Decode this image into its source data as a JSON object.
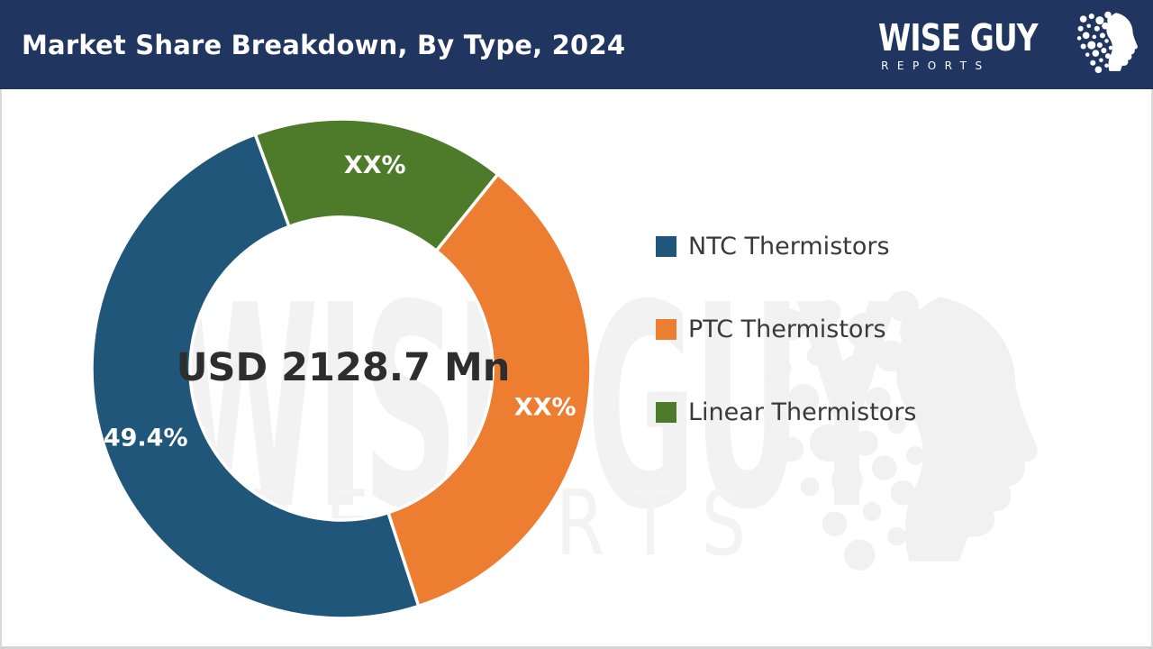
{
  "header": {
    "title": "Market Share Breakdown, By Type, 2024",
    "background_color": "#203560",
    "logo": {
      "line1": "WISE GUY",
      "line2": "REPORTS"
    }
  },
  "chart_data": {
    "type": "pie",
    "variant": "donut",
    "title": "Market Share Breakdown, By Type, 2024",
    "center_label": "USD 2128.7 Mn",
    "start_angle_deg": 110.2,
    "direction": "counterclockwise",
    "legend_position": "right",
    "segments": [
      {
        "name": "NTC Thermistors",
        "value_pct": 49.4,
        "display_label": "49.4%",
        "color": "#1f567a"
      },
      {
        "name": "PTC Thermistors",
        "value_pct": 34.2,
        "display_label": "XX%",
        "color": "#ed7d31"
      },
      {
        "name": "Linear Thermistors",
        "value_pct": 16.4,
        "display_label": "XX%",
        "color": "#4e7b2a"
      }
    ]
  },
  "legend": {
    "items": [
      {
        "label": "NTC Thermistors",
        "color": "#1f567a"
      },
      {
        "label": "PTC Thermistors",
        "color": "#ed7d31"
      },
      {
        "label": "Linear Thermistors",
        "color": "#4e7b2a"
      }
    ]
  },
  "watermark": {
    "line1": "WISE GUY",
    "line2": "REPORTS"
  }
}
